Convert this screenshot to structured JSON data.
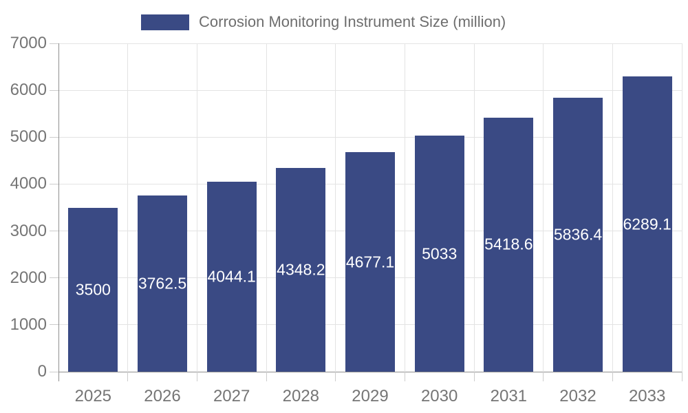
{
  "legend": {
    "label": "Corrosion Monitoring Instrument Size (million)"
  },
  "chart_data": {
    "type": "bar",
    "title": "Corrosion Monitoring Instrument Size (million)",
    "series_name": "Corrosion Monitoring Instrument Size (million)",
    "categories": [
      "2025",
      "2026",
      "2027",
      "2028",
      "2029",
      "2030",
      "2031",
      "2032",
      "2033"
    ],
    "values": [
      3500,
      3762.5,
      4044.1,
      4348.2,
      4677.1,
      5033,
      5418.6,
      5836.4,
      6289.1
    ],
    "value_labels": [
      "3500",
      "3762.5",
      "4044.1",
      "4348.2",
      "4677.1",
      "5033",
      "5418.6",
      "5836.4",
      "6289.1"
    ],
    "xlabel": "",
    "ylabel": "",
    "ylim": [
      0,
      7000
    ],
    "yticks": [
      0,
      1000,
      2000,
      3000,
      4000,
      5000,
      6000,
      7000
    ],
    "grid": true,
    "legend_position": "top",
    "value_label_position": "inside-middle",
    "colors": {
      "bar": "#3a4a84",
      "value_label": "#ffffff",
      "axis_line": "#8f8f8f",
      "tick": "#cccccc",
      "gridline": "#e3e3e3",
      "axis_label": "#757575",
      "legend_text": "#6e6e6e",
      "background": "#ffffff"
    }
  }
}
